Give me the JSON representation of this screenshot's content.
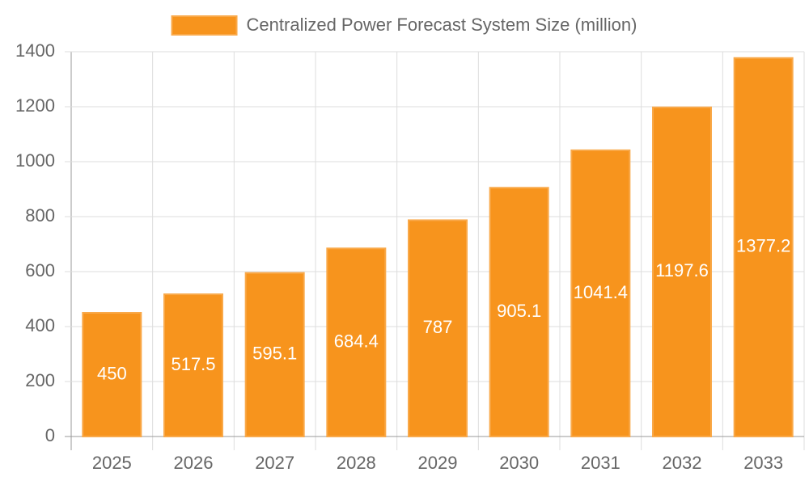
{
  "chart_data": {
    "type": "bar",
    "categories": [
      "2025",
      "2026",
      "2027",
      "2028",
      "2029",
      "2030",
      "2031",
      "2032",
      "2033"
    ],
    "series": [
      {
        "name": "Centralized Power Forecast System Size (million)",
        "color": "#f7941d",
        "values": [
          450,
          517.5,
          595.1,
          684.4,
          787,
          905.1,
          1041.4,
          1197.6,
          1377.2
        ]
      }
    ],
    "ylim": [
      0,
      1400
    ],
    "yticks": [
      0,
      200,
      400,
      600,
      800,
      1000,
      1200,
      1400
    ],
    "grid": true,
    "legend": "top"
  }
}
